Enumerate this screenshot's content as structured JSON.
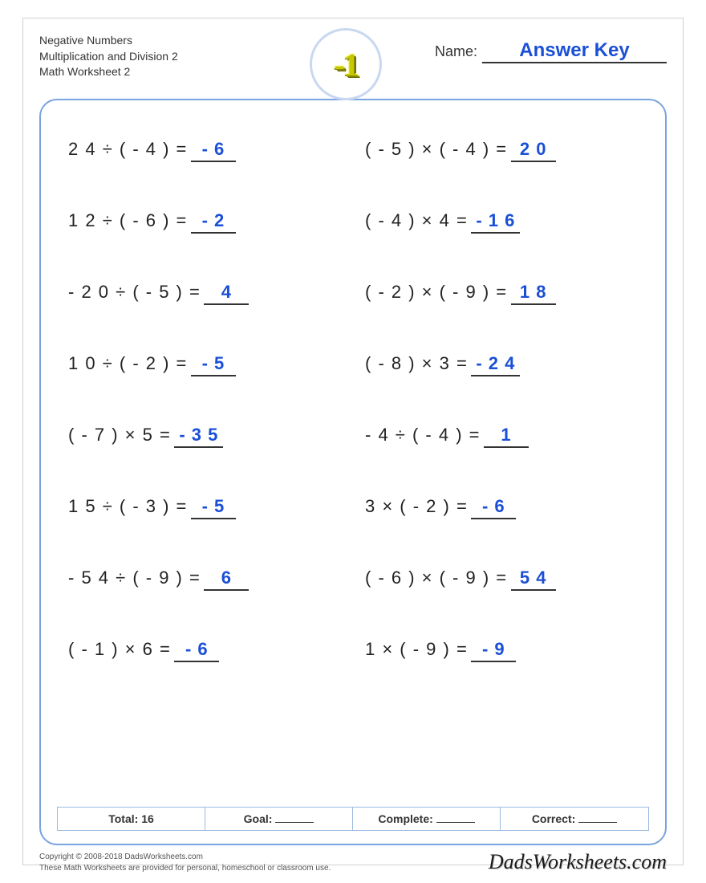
{
  "header": {
    "title_line1": "Negative Numbers",
    "title_line2": "Multiplication and Division 2",
    "title_line3": "Math Worksheet 2",
    "name_label": "Name:",
    "answer_key": "Answer Key",
    "logo_text": "-1"
  },
  "problems": [
    {
      "expr": "2 4 ÷ ( - 4 )  =",
      "ans": "- 6"
    },
    {
      "expr": "( - 5 ) × ( - 4 )  =",
      "ans": "2 0"
    },
    {
      "expr": "1 2 ÷ ( - 6 )  =",
      "ans": "- 2"
    },
    {
      "expr": "( - 4 )  × 4  =",
      "ans": "- 1 6"
    },
    {
      "expr": "- 2 0 ÷ ( - 5 )  =",
      "ans": "4"
    },
    {
      "expr": "( - 2 ) × ( - 9 )  =",
      "ans": "1 8"
    },
    {
      "expr": "1 0 ÷ ( - 2 )  =",
      "ans": "- 5"
    },
    {
      "expr": "( - 8 )  × 3  =",
      "ans": "- 2 4"
    },
    {
      "expr": "( - 7 )  × 5  =",
      "ans": "- 3 5"
    },
    {
      "expr": "- 4 ÷ ( - 4 )  =",
      "ans": "1"
    },
    {
      "expr": "1 5 ÷ ( - 3 )  =",
      "ans": "- 5"
    },
    {
      "expr": "3 ×  ( - 2 )  =",
      "ans": "- 6"
    },
    {
      "expr": "- 5 4 ÷ ( - 9 )  =",
      "ans": "6"
    },
    {
      "expr": "( - 6 ) × ( - 9 )  =",
      "ans": "5 4"
    },
    {
      "expr": "( - 1 )  × 6  =",
      "ans": "- 6"
    },
    {
      "expr": "1 ×  ( - 9 )  =",
      "ans": "- 9"
    }
  ],
  "stats": {
    "total_label": "Total: 16",
    "goal_label": "Goal:",
    "complete_label": "Complete:",
    "correct_label": "Correct:"
  },
  "footer": {
    "copyright": "Copyright © 2008-2018 DadsWorksheets.com",
    "note": "These Math Worksheets are provided for personal, homeschool or classroom use.",
    "brand": "DadsWorksheets.com"
  },
  "colors": {
    "frame_border": "#7aa3e0",
    "answer_color": "#1a4fd6",
    "text_color": "#222222",
    "logo_fill": "#c8c800"
  }
}
